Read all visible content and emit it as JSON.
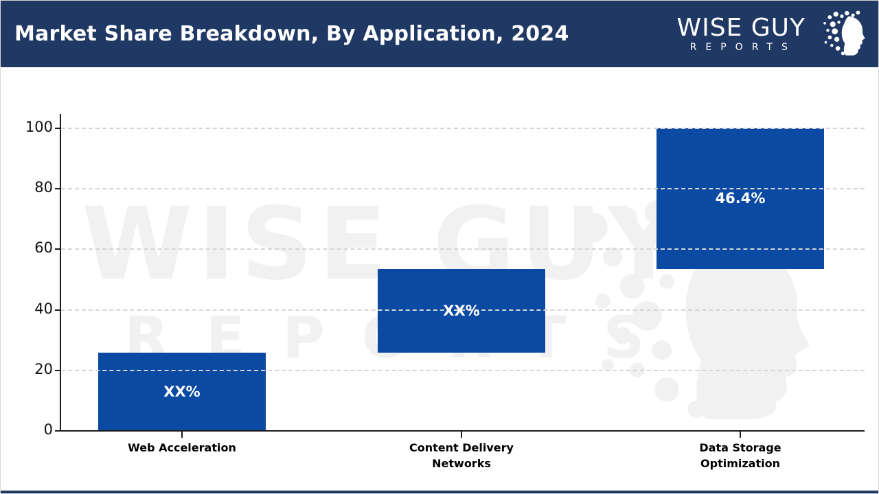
{
  "page": {
    "background": "#ffffff",
    "border_color": "#d9d9d9",
    "footer_color": "#1f3864"
  },
  "header": {
    "background": "#1f3864",
    "title": "Market Share Breakdown, By Application, 2024",
    "logo": {
      "line1": "WISE GUY",
      "line2": "REPORTS"
    }
  },
  "watermark": {
    "line1": "WISE GUY",
    "line2": "REPORTS"
  },
  "chart_data": {
    "type": "bar",
    "subtype": "floating-segment-bar",
    "title": "Market Share Breakdown, By Application, 2024",
    "categories": [
      [
        "Web Acceleration"
      ],
      [
        "Content Delivery",
        "Networks"
      ],
      [
        "Data Storage",
        "Optimization"
      ]
    ],
    "series": [
      {
        "category": "Web Acceleration",
        "start": 0,
        "end": 25.8,
        "segment_size": 25.8,
        "value_label": "XX%"
      },
      {
        "category": "Content Delivery Networks",
        "start": 25.8,
        "end": 53.6,
        "segment_size": 27.8,
        "value_label": "XX%"
      },
      {
        "category": "Data Storage Optimization",
        "start": 53.6,
        "end": 100,
        "segment_size": 46.4,
        "value_label": "46.4%"
      }
    ],
    "ylim": [
      0,
      105
    ],
    "yticks": [
      0,
      20,
      40,
      60,
      80,
      100
    ],
    "xlabel": "",
    "ylabel": "",
    "grid": {
      "axis": "y",
      "style": "dashed",
      "color": "#d5d5d5",
      "on_top_of_bars": true
    },
    "legend": "none",
    "bar_color": "#0b4aa2",
    "bar_label_color": "#ffffff",
    "axis_color": "#1a1a1a",
    "tick_label_color": "#111111"
  }
}
